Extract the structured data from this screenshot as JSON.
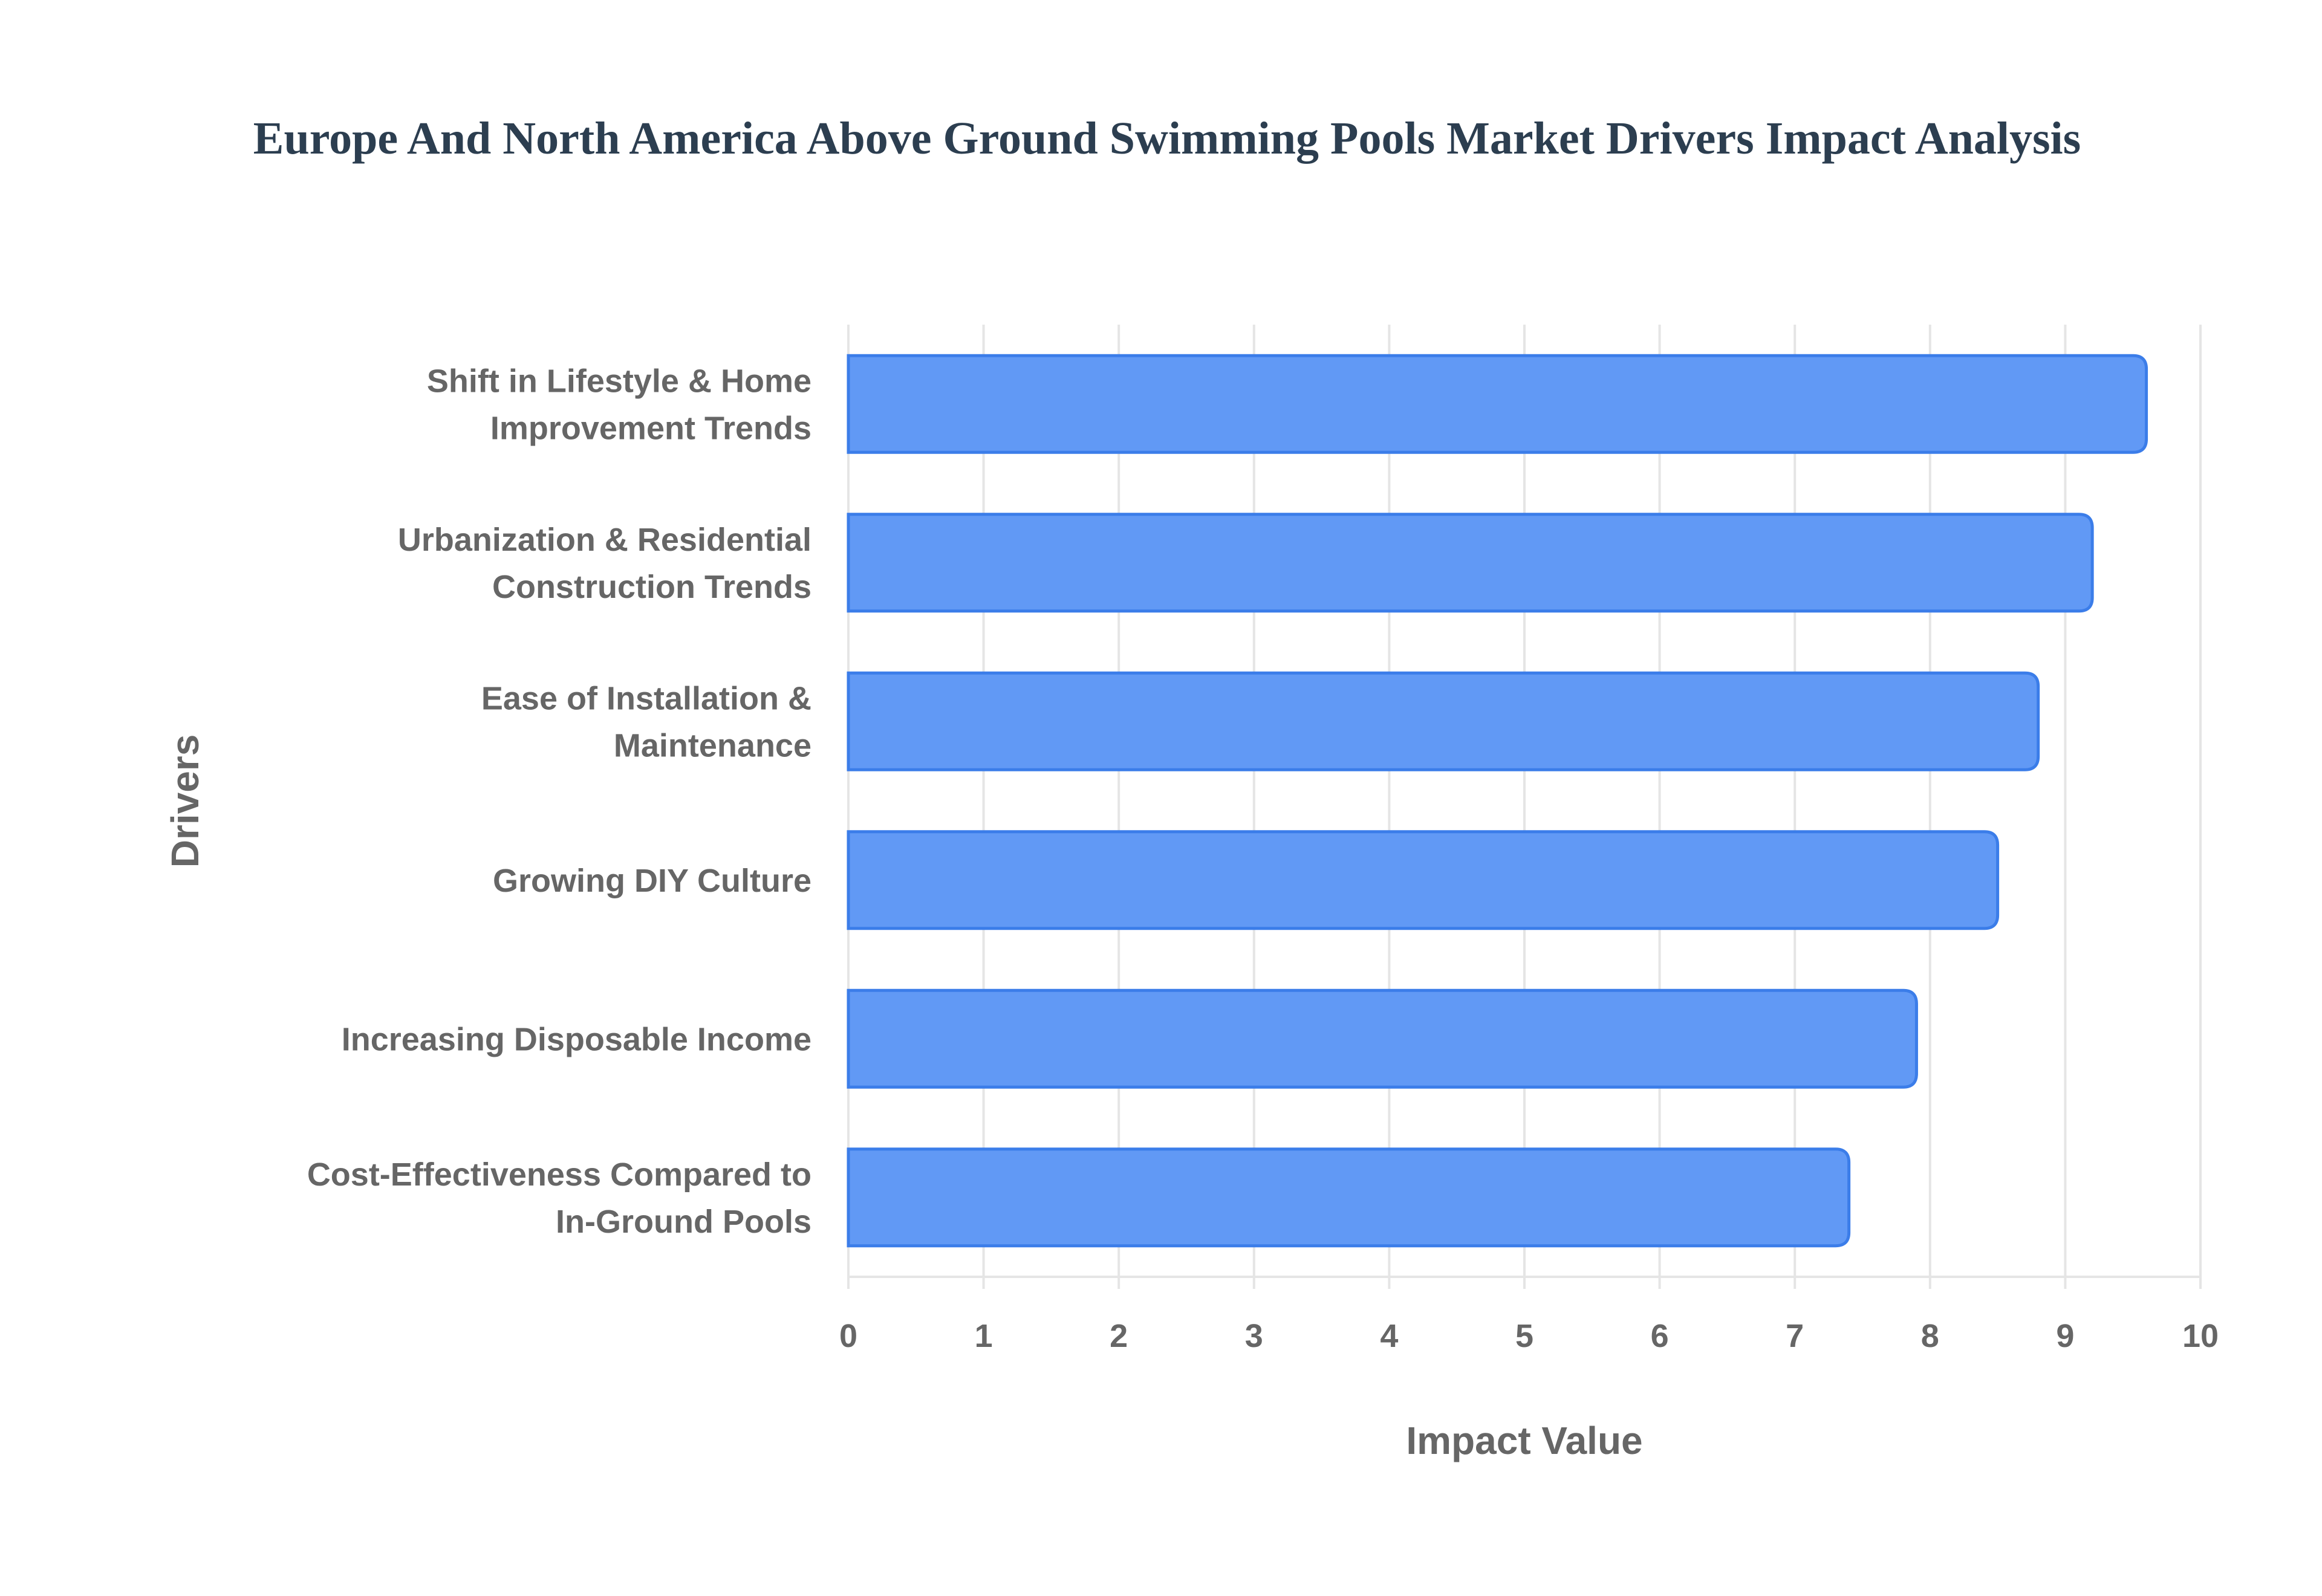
{
  "chart_data": {
    "type": "bar",
    "orientation": "horizontal",
    "title": "Europe And North America Above Ground Swimming Pools Market Drivers Impact Analysis",
    "xlabel": "Impact Value",
    "ylabel": "Drivers",
    "categories": [
      [
        "Shift in Lifestyle & Home",
        "Improvement Trends"
      ],
      [
        "Urbanization & Residential",
        "Construction Trends"
      ],
      [
        "Ease of Installation &",
        "Maintenance"
      ],
      [
        "Growing DIY Culture"
      ],
      [
        "Increasing Disposable Income"
      ],
      [
        "Cost-Effectiveness Compared to",
        "In-Ground Pools"
      ]
    ],
    "values": [
      9.6,
      9.2,
      8.8,
      8.5,
      7.9,
      7.4
    ],
    "xlim": [
      0,
      10
    ],
    "xticks": [
      "0",
      "1",
      "2",
      "3",
      "4",
      "5",
      "6",
      "7",
      "8",
      "9",
      "10"
    ],
    "grid": true,
    "legend": "none",
    "colors": {
      "bar_fill": "#6199f5",
      "bar_border": "#3b7de9",
      "grid": "#e5e5e5",
      "title": "#2c3e50",
      "text": "#666666"
    }
  }
}
